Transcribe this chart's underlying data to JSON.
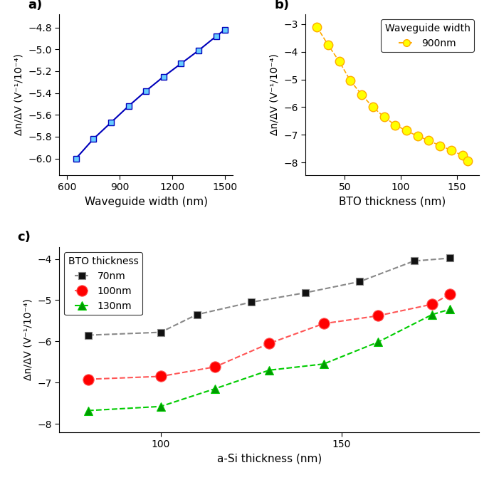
{
  "panel_a": {
    "x": [
      650,
      750,
      850,
      950,
      1050,
      1150,
      1250,
      1350,
      1450,
      1500
    ],
    "y": [
      -6.0,
      -5.82,
      -5.67,
      -5.52,
      -5.38,
      -5.25,
      -5.13,
      -5.01,
      -4.88,
      -4.82
    ],
    "color_line": "#0000bb",
    "color_marker": "#66ccff",
    "marker": "s",
    "markersize": 6,
    "linewidth": 1.5,
    "xlabel": "Waveguide width (nm)",
    "ylabel": "Δn/ΔV (V⁻¹/10⁻⁴)",
    "xlim": [
      555,
      1545
    ],
    "ylim": [
      -6.15,
      -4.68
    ],
    "xticks": [
      600,
      900,
      1200,
      1500
    ],
    "yticks": [
      -6.0,
      -5.8,
      -5.6,
      -5.4,
      -5.2,
      -5.0,
      -4.8
    ],
    "label": "a)"
  },
  "panel_b": {
    "x": [
      25,
      35,
      45,
      55,
      65,
      75,
      85,
      95,
      105,
      115,
      125,
      135,
      145,
      155,
      160
    ],
    "y": [
      -3.1,
      -3.75,
      -4.35,
      -5.05,
      -5.55,
      -6.0,
      -6.35,
      -6.65,
      -6.85,
      -7.05,
      -7.2,
      -7.4,
      -7.55,
      -7.75,
      -7.95
    ],
    "color_line": "#ffaa00",
    "color_marker": "#ffff00",
    "marker": "o",
    "markersize": 9,
    "linewidth": 1.2,
    "linestyle": "--",
    "xlabel": "BTO thickness (nm)",
    "ylabel": "Δn/ΔV (V⁻¹/10⁻⁴)",
    "xlim": [
      15,
      170
    ],
    "ylim": [
      -8.45,
      -2.65
    ],
    "xticks": [
      50,
      100,
      150
    ],
    "yticks": [
      -8,
      -7,
      -6,
      -5,
      -4,
      -3
    ],
    "legend_title": "Waveguide width",
    "legend_label": "900nm",
    "label": "b)"
  },
  "panel_c": {
    "series": [
      {
        "x": [
          80,
          100,
          110,
          125,
          140,
          155,
          170,
          180
        ],
        "y": [
          -5.85,
          -5.78,
          -5.35,
          -5.05,
          -4.82,
          -4.55,
          -4.05,
          -3.98
        ],
        "color_line": "#888888",
        "color_marker": "#111111",
        "marker": "s",
        "markersize": 7,
        "linestyle": "--",
        "linewidth": 1.5,
        "label": "70nm"
      },
      {
        "x": [
          80,
          100,
          115,
          130,
          145,
          160,
          175,
          180
        ],
        "y": [
          -6.92,
          -6.85,
          -6.62,
          -6.05,
          -5.57,
          -5.38,
          -5.1,
          -4.85
        ],
        "color_line": "#ff5555",
        "color_marker": "#ff0000",
        "marker": "o",
        "markersize": 11,
        "linestyle": "--",
        "linewidth": 1.5,
        "label": "100nm"
      },
      {
        "x": [
          80,
          100,
          115,
          130,
          145,
          160,
          175,
          180
        ],
        "y": [
          -7.68,
          -7.58,
          -7.15,
          -6.7,
          -6.55,
          -6.02,
          -5.35,
          -5.22
        ],
        "color_line": "#00cc00",
        "color_marker": "#009900",
        "marker": "^",
        "markersize": 9,
        "linestyle": "--",
        "linewidth": 1.5,
        "label": "130nm"
      }
    ],
    "xlabel": "a-Si thickness (nm)",
    "ylabel": "Δn/ΔV (V⁻¹/10⁻⁴)",
    "xlim": [
      72,
      188
    ],
    "ylim": [
      -8.2,
      -3.72
    ],
    "xticks": [
      100,
      150
    ],
    "yticks": [
      -8,
      -7,
      -6,
      -5,
      -4
    ],
    "legend_title": "BTO thickness",
    "label": "c)"
  },
  "ylabel_fontsize": 10,
  "xlabel_fontsize": 11,
  "tick_fontsize": 10,
  "label_fontsize": 13,
  "legend_fontsize": 10
}
